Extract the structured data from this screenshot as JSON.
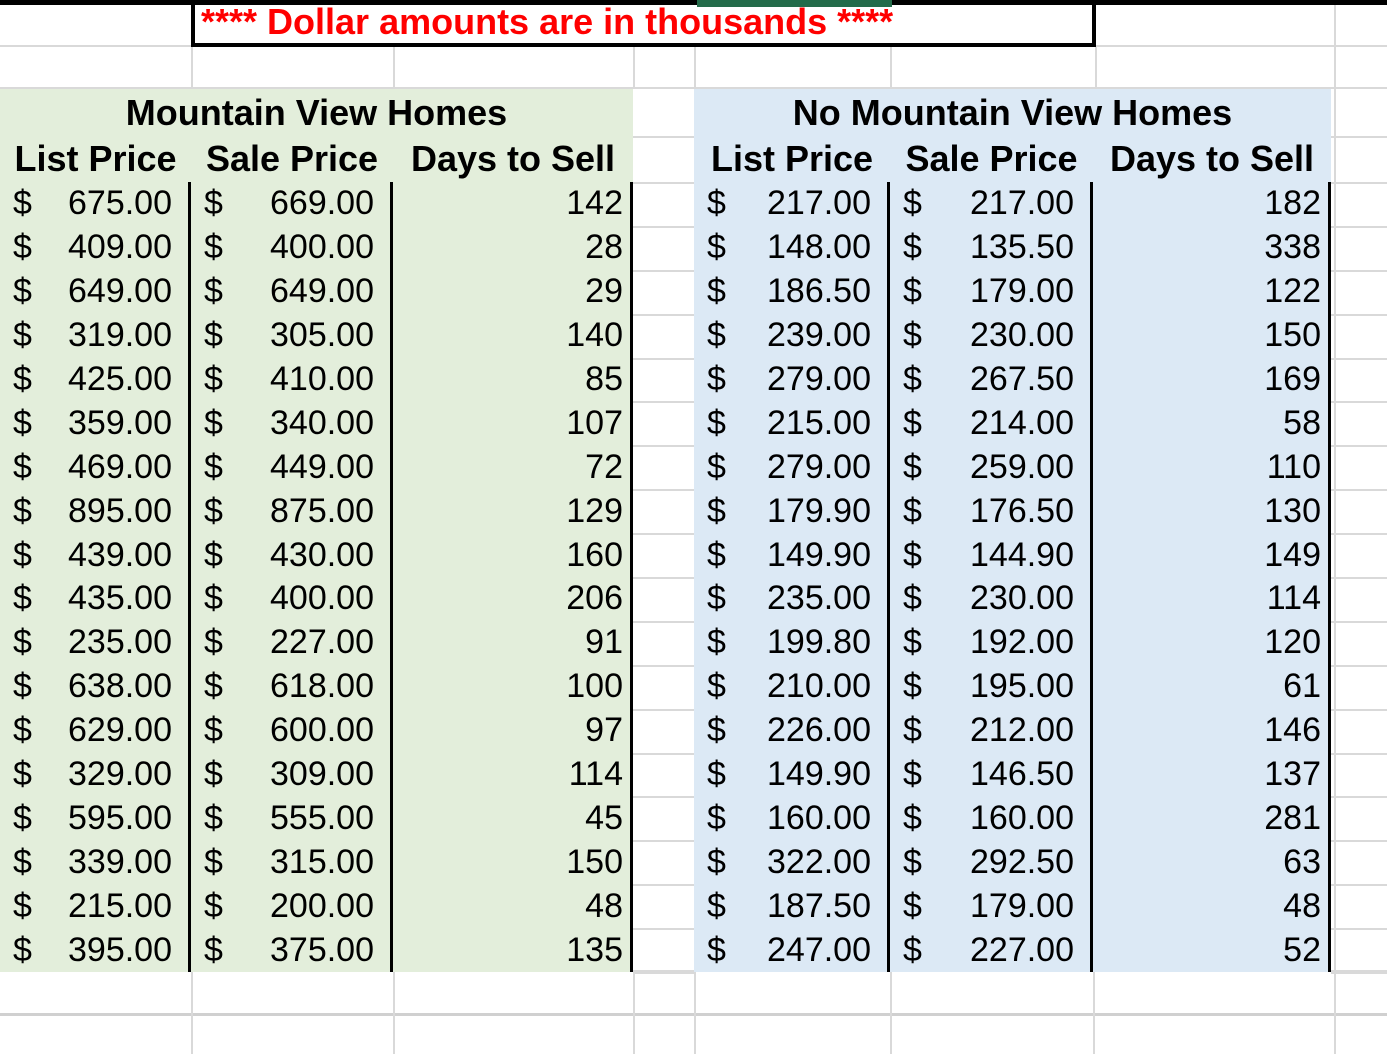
{
  "banner": {
    "label": "**** Dollar amounts are in thousands ****"
  },
  "colors": {
    "banner_text": "#ff0000",
    "green_fill": "#e3eedb",
    "blue_fill": "#dce9f5",
    "strip_green": "#246b4a",
    "grid_line": "#d9d9d9",
    "border_black": "#000000"
  },
  "tables": [
    {
      "title": "Mountain View Homes",
      "headers": [
        "List Price",
        "Sale Price",
        "Days to Sell"
      ],
      "rows": [
        {
          "list": "675.00",
          "sale": "669.00",
          "days": "142"
        },
        {
          "list": "409.00",
          "sale": "400.00",
          "days": "28"
        },
        {
          "list": "649.00",
          "sale": "649.00",
          "days": "29"
        },
        {
          "list": "319.00",
          "sale": "305.00",
          "days": "140"
        },
        {
          "list": "425.00",
          "sale": "410.00",
          "days": "85"
        },
        {
          "list": "359.00",
          "sale": "340.00",
          "days": "107"
        },
        {
          "list": "469.00",
          "sale": "449.00",
          "days": "72"
        },
        {
          "list": "895.00",
          "sale": "875.00",
          "days": "129"
        },
        {
          "list": "439.00",
          "sale": "430.00",
          "days": "160"
        },
        {
          "list": "435.00",
          "sale": "400.00",
          "days": "206"
        },
        {
          "list": "235.00",
          "sale": "227.00",
          "days": "91"
        },
        {
          "list": "638.00",
          "sale": "618.00",
          "days": "100"
        },
        {
          "list": "629.00",
          "sale": "600.00",
          "days": "97"
        },
        {
          "list": "329.00",
          "sale": "309.00",
          "days": "114"
        },
        {
          "list": "595.00",
          "sale": "555.00",
          "days": "45"
        },
        {
          "list": "339.00",
          "sale": "315.00",
          "days": "150"
        },
        {
          "list": "215.00",
          "sale": "200.00",
          "days": "48"
        },
        {
          "list": "395.00",
          "sale": "375.00",
          "days": "135"
        }
      ]
    },
    {
      "title": "No Mountain View Homes",
      "headers": [
        "List Price",
        "Sale Price",
        "Days to Sell"
      ],
      "rows": [
        {
          "list": "217.00",
          "sale": "217.00",
          "days": "182"
        },
        {
          "list": "148.00",
          "sale": "135.50",
          "days": "338"
        },
        {
          "list": "186.50",
          "sale": "179.00",
          "days": "122"
        },
        {
          "list": "239.00",
          "sale": "230.00",
          "days": "150"
        },
        {
          "list": "279.00",
          "sale": "267.50",
          "days": "169"
        },
        {
          "list": "215.00",
          "sale": "214.00",
          "days": "58"
        },
        {
          "list": "279.00",
          "sale": "259.00",
          "days": "110"
        },
        {
          "list": "179.90",
          "sale": "176.50",
          "days": "130"
        },
        {
          "list": "149.90",
          "sale": "144.90",
          "days": "149"
        },
        {
          "list": "235.00",
          "sale": "230.00",
          "days": "114"
        },
        {
          "list": "199.80",
          "sale": "192.00",
          "days": "120"
        },
        {
          "list": "210.00",
          "sale": "195.00",
          "days": "61"
        },
        {
          "list": "226.00",
          "sale": "212.00",
          "days": "146"
        },
        {
          "list": "149.90",
          "sale": "146.50",
          "days": "137"
        },
        {
          "list": "160.00",
          "sale": "160.00",
          "days": "281"
        },
        {
          "list": "322.00",
          "sale": "292.50",
          "days": "63"
        },
        {
          "list": "187.50",
          "sale": "179.00",
          "days": "48"
        },
        {
          "list": "247.00",
          "sale": "227.00",
          "days": "52"
        }
      ]
    }
  ]
}
